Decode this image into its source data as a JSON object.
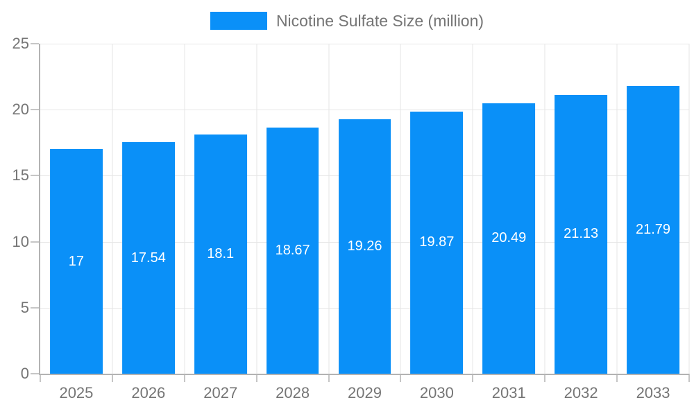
{
  "legend": {
    "label": "Nicotine Sulfate Size (million)"
  },
  "chart_data": {
    "type": "bar",
    "title": "Nicotine Sulfate Size (million)",
    "series_name": "Nicotine Sulfate Size (million)",
    "categories": [
      "2025",
      "2026",
      "2027",
      "2028",
      "2029",
      "2030",
      "2031",
      "2032",
      "2033"
    ],
    "values": [
      17,
      17.54,
      18.1,
      18.67,
      19.26,
      19.87,
      20.49,
      21.13,
      21.79
    ],
    "value_labels": [
      "17",
      "17.54",
      "18.1",
      "18.67",
      "19.26",
      "19.87",
      "20.49",
      "21.13",
      "21.79"
    ],
    "xlabel": "",
    "ylabel": "",
    "ylim": [
      0,
      25
    ],
    "yticks": [
      0,
      5,
      10,
      15,
      20,
      25
    ],
    "grid": "on",
    "legend_position": "top",
    "colors": {
      "bar": "#0a90f8",
      "value_label": "#ffffff",
      "axis_text": "#757575",
      "grid_line": "#e6e6e6",
      "axis_line": "#b3b3b3",
      "tick_mark": "#c6c6c6",
      "background": "#ffffff"
    }
  }
}
